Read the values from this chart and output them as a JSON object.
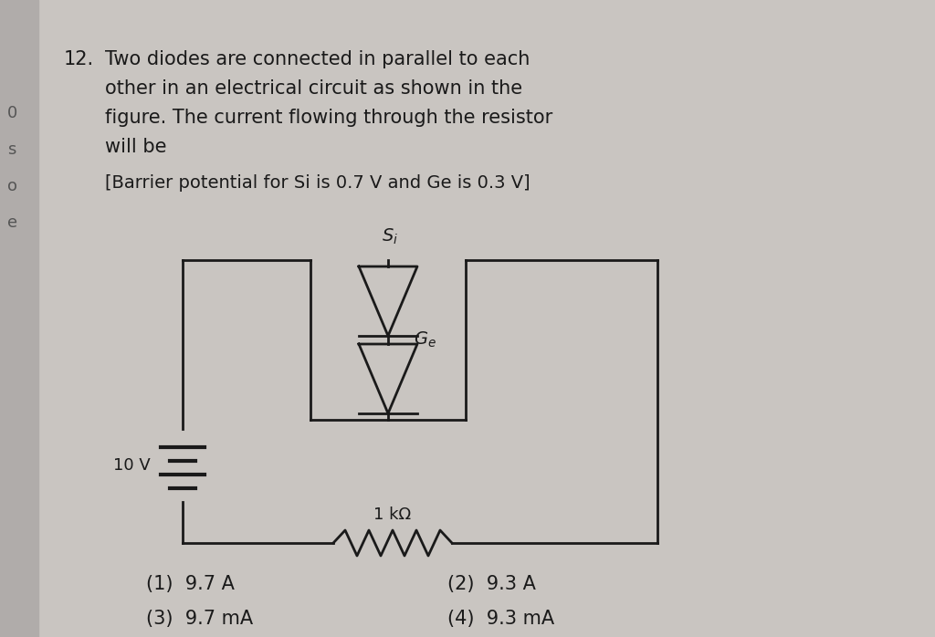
{
  "bg_color": "#c8c4c0",
  "page_color": "#e8e4e0",
  "text_color": "#1a1a1a",
  "question_number": "12.",
  "question_lines": [
    "Two diodes are connected in parallel to each",
    "other in an electrical circuit as shown in the",
    "figure. The current flowing through the resistor",
    "will be"
  ],
  "barrier_text": "[Barrier potential for Si is 0.7 V and Ge is 0.3 V]",
  "options": [
    "(1)  9.7 A",
    "(2)  9.3 A",
    "(3)  9.7 mA",
    "(4)  9.3 mA"
  ],
  "left_strip_color": "#7a7a7a",
  "left_strip_letters": [
    "0",
    "s",
    "o",
    "e"
  ],
  "voltage_label": "10 V",
  "resistor_label": "1 kΩ",
  "Si_label": "S",
  "Ge_label": "G",
  "font_size_question": 15,
  "font_size_options": 15,
  "font_size_barrier": 14,
  "line_width": 2.0
}
